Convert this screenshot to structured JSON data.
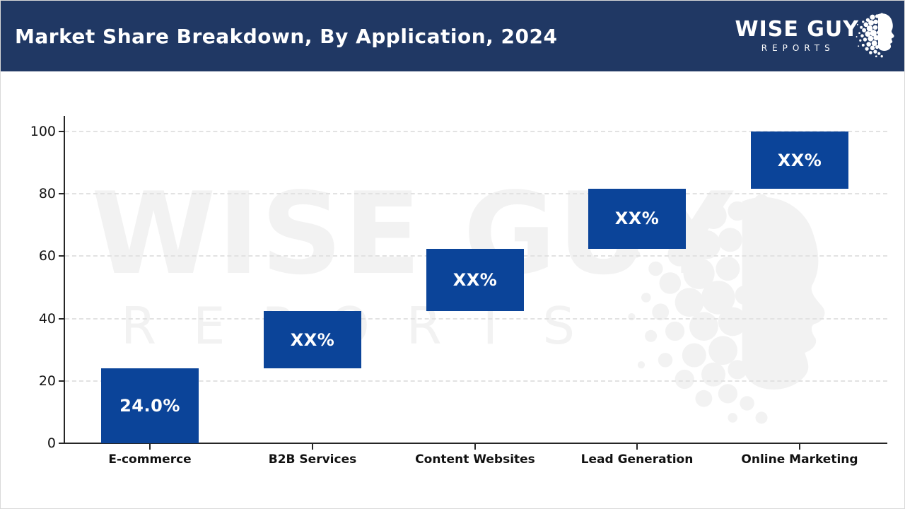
{
  "header": {
    "title": "Market Share Breakdown, By Application, 2024",
    "logo": {
      "name": "WISE GUY",
      "tagline": "REPORTS"
    }
  },
  "watermark": {
    "text_primary": "WISE GUY",
    "text_secondary": "REPORTS"
  },
  "colors": {
    "header_bg": "#203864",
    "bar": "#0b4499",
    "bar_label": "#ffffff",
    "axis": "#262626",
    "grid": "#e2e2e2",
    "tick_label": "#111111",
    "watermark": "#f2f2f2",
    "logo_fg": "#ffffff"
  },
  "chart_data": {
    "type": "bar",
    "subtype": "waterfall",
    "title": "Market Share Breakdown, By Application, 2024",
    "categories": [
      "E-commerce",
      "B2B Services",
      "Content Websites",
      "Lead Generation",
      "Online Marketing"
    ],
    "segments": [
      {
        "category": "E-commerce",
        "start": 0,
        "end": 24.0,
        "label": "24.0%"
      },
      {
        "category": "B2B Services",
        "start": 24.0,
        "end": 42.4,
        "label": "XX%"
      },
      {
        "category": "Content Websites",
        "start": 42.4,
        "end": 62.4,
        "label": "XX%"
      },
      {
        "category": "Lead Generation",
        "start": 62.4,
        "end": 81.6,
        "label": "XX%"
      },
      {
        "category": "Online Marketing",
        "start": 81.6,
        "end": 100.0,
        "label": "XX%"
      }
    ],
    "yticks": [
      0,
      20,
      40,
      60,
      80,
      100
    ],
    "ylim": [
      0,
      105
    ],
    "xlabel": "",
    "ylabel": "",
    "grid": "horizontal-dashed",
    "legend": "none"
  }
}
